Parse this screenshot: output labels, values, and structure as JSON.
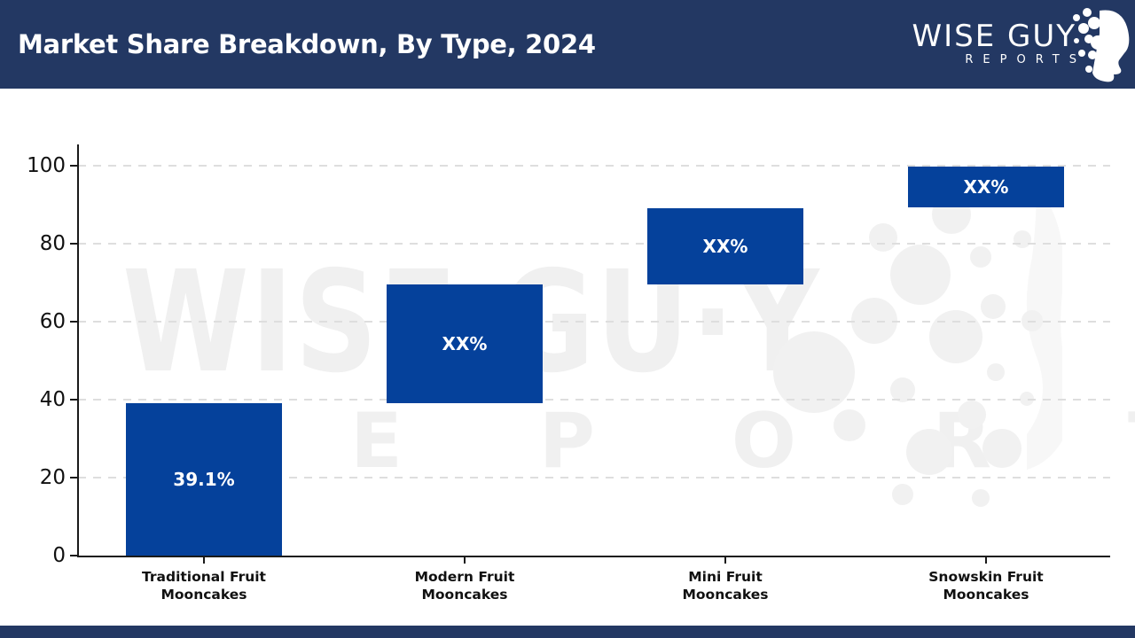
{
  "header": {
    "title": "Market Share Breakdown, By Type, 2024",
    "logo": {
      "line1": "WISE GUY",
      "line2": "REPORTS"
    }
  },
  "watermark": {
    "line1": "WISE GU·Y",
    "line2": "R E P O R T S"
  },
  "chart_data": {
    "type": "bar",
    "subtype": "floating-waterfall",
    "title": "Market Share Breakdown, By Type, 2024",
    "categories": [
      "Traditional Fruit Mooncakes",
      "Modern Fruit Mooncakes",
      "Mini Fruit Mooncakes",
      "Snowskin Fruit Mooncakes"
    ],
    "segments": [
      {
        "category": "Traditional Fruit Mooncakes",
        "start": 0,
        "end": 39.1,
        "label": "39.1%"
      },
      {
        "category": "Modern Fruit Mooncakes",
        "start": 39.1,
        "end": 69.5,
        "label": "XX%"
      },
      {
        "category": "Mini Fruit Mooncakes",
        "start": 69.5,
        "end": 89.1,
        "label": "XX%"
      },
      {
        "category": "Snowskin Fruit Mooncakes",
        "start": 89.3,
        "end": 99.8,
        "label": "XX%"
      }
    ],
    "ylim": [
      0,
      100
    ],
    "yticks": [
      0,
      20,
      40,
      60,
      80,
      100
    ],
    "xlabel": "",
    "ylabel": "",
    "grid": "horizontal-dashed",
    "legend": "none",
    "colors": {
      "bar": "#05419b",
      "bar_label": "#ffffff",
      "grid": "#dedede",
      "axis": "#1a1a1a",
      "header_bg": "#233863",
      "watermark": "#f0f0f0"
    }
  }
}
